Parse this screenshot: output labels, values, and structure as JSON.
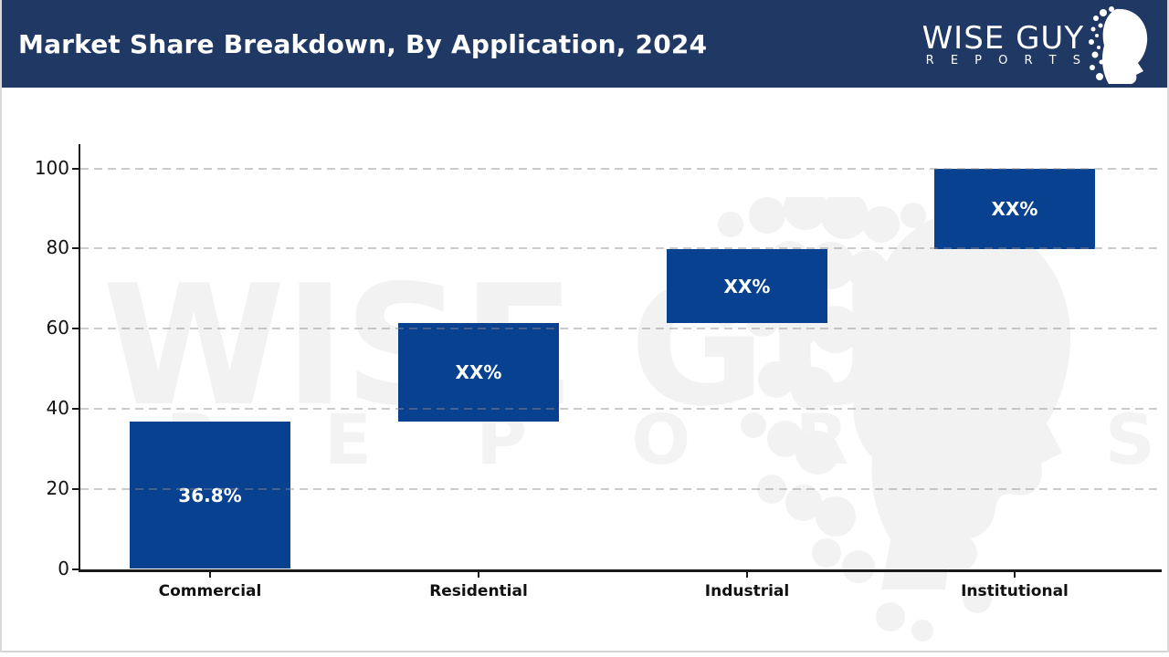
{
  "header": {
    "title": "Market Share Breakdown, By Application, 2024",
    "bg_color": "#203864",
    "logo": {
      "line1": "WISE GUY",
      "line2": "R E P O R T S"
    }
  },
  "watermark": {
    "line1": "WISE GUY",
    "line2": "R E P O R T S"
  },
  "chart_data": {
    "type": "bar",
    "subtype": "stacked-waterfall",
    "title": "Market Share Breakdown, By Application, 2024",
    "categories": [
      "Commercial",
      "Residential",
      "Industrial",
      "Institutional"
    ],
    "segments": [
      {
        "category": "Commercial",
        "start": 0,
        "end": 36.8,
        "label": "36.8%"
      },
      {
        "category": "Residential",
        "start": 36.8,
        "end": 61.4,
        "label": "XX%"
      },
      {
        "category": "Industrial",
        "start": 61.4,
        "end": 79.8,
        "label": "XX%"
      },
      {
        "category": "Institutional",
        "start": 79.8,
        "end": 100,
        "label": "XX%"
      }
    ],
    "xlabel": "",
    "ylabel": "",
    "ylim": [
      0,
      100
    ],
    "yticks": [
      0,
      20,
      40,
      60,
      80,
      100
    ],
    "grid": "horizontal dashed, drawn above bars",
    "legend": "none",
    "bar_color": "#07418f",
    "bar_label_color": "#ffffff",
    "axis_color": "#1a1a1a"
  }
}
